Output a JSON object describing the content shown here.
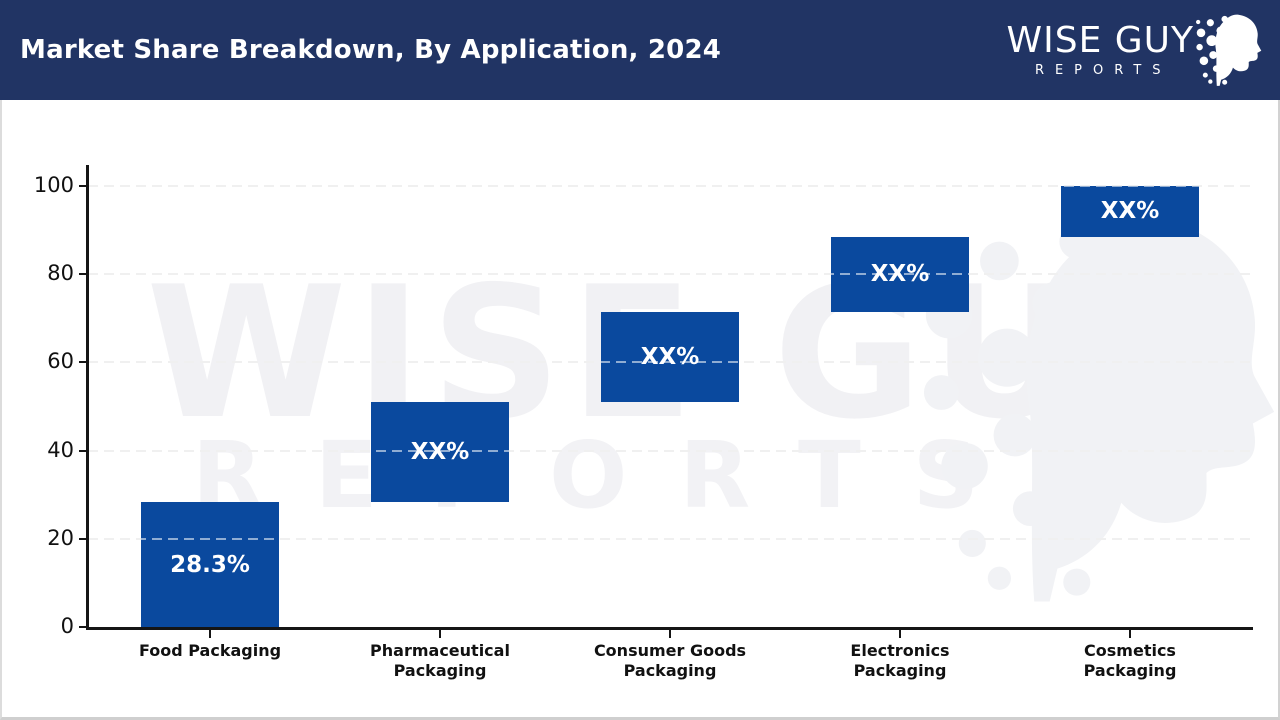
{
  "header": {
    "title": "Market Share Breakdown, By Application, 2024",
    "logo_line1": "WISE GUY",
    "logo_line2": "REPORTS"
  },
  "watermark": {
    "line1": "WISE GUY",
    "line2": "REPORTS"
  },
  "chart_data": {
    "type": "bar",
    "subtype": "waterfall",
    "title": "Market Share Breakdown, By Application, 2024",
    "xlabel": "",
    "ylabel": "",
    "categories": [
      "Food Packaging",
      "Pharmaceutical Packaging",
      "Consumer Goods Packaging",
      "Electronics Packaging",
      "Cosmetics Packaging"
    ],
    "category_label_lines": [
      [
        "Food Packaging"
      ],
      [
        "Pharmaceutical",
        "Packaging"
      ],
      [
        "Consumer Goods",
        "Packaging"
      ],
      [
        "Electronics",
        "Packaging"
      ],
      [
        "Cosmetics",
        "Packaging"
      ]
    ],
    "segments": [
      {
        "category": "Food Packaging",
        "start": 0,
        "end": 28.3,
        "label": "28.3%"
      },
      {
        "category": "Pharmaceutical Packaging",
        "start": 28.3,
        "end": 51.0,
        "label": "XX%"
      },
      {
        "category": "Consumer Goods Packaging",
        "start": 51.0,
        "end": 71.5,
        "label": "XX%"
      },
      {
        "category": "Electronics Packaging",
        "start": 71.5,
        "end": 88.5,
        "label": "XX%"
      },
      {
        "category": "Cosmetics Packaging",
        "start": 88.5,
        "end": 100.0,
        "label": "XX%"
      }
    ],
    "yticks": [
      0,
      20,
      40,
      60,
      80,
      100
    ],
    "ylim": [
      0,
      104.5
    ],
    "grid": true,
    "grid_style": "dashed",
    "legend": null,
    "bar_color": "#0a499e",
    "axis_color": "#151515",
    "header_bg_color": "#213464",
    "label_text_color": "#ffffff"
  }
}
